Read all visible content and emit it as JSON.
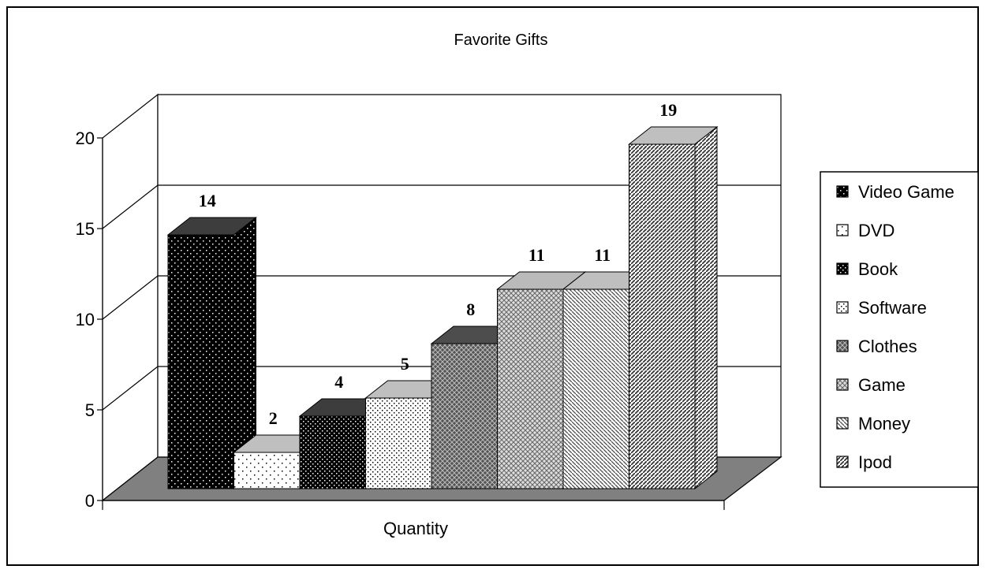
{
  "chart_data": {
    "type": "bar",
    "title": "Favorite Gifts",
    "xlabel": "Quantity",
    "ylabel": "",
    "ylim": [
      0,
      20
    ],
    "yticks": [
      "0",
      "5",
      "10",
      "15",
      "20"
    ],
    "grid": true,
    "three_d": true,
    "legend_position": "right",
    "series": [
      {
        "name": "Video Game",
        "value": 14,
        "label": "14",
        "face": "#000000",
        "dots": "#ffffff",
        "pattern": "dots-dark"
      },
      {
        "name": "DVD",
        "value": 2,
        "label": "2",
        "face": "#ffffff",
        "dots": "#000000",
        "pattern": "dots-light"
      },
      {
        "name": "Book",
        "value": 4,
        "label": "4",
        "face": "#000000",
        "dots": "#ffffff",
        "pattern": "checker-dark"
      },
      {
        "name": "Software",
        "value": 5,
        "label": "5",
        "face": "#ffffff",
        "dots": "#000000",
        "pattern": "dots-dense"
      },
      {
        "name": "Clothes",
        "value": 8,
        "label": "8",
        "face": "#555555",
        "dots": "#ffffff",
        "pattern": "crosshatch-dark"
      },
      {
        "name": "Game",
        "value": 11,
        "label": "11",
        "face": "#cfcfcf",
        "dots": "#000000",
        "pattern": "crosshatch-light"
      },
      {
        "name": "Money",
        "value": 11,
        "label": "11",
        "face": "#ffffff",
        "dots": "#000000",
        "pattern": "diag-light"
      },
      {
        "name": "Ipod",
        "value": 19,
        "label": "19",
        "face": "#ffffff",
        "dots": "#000000",
        "pattern": "diag-dark"
      }
    ],
    "floor_color": "#808080"
  }
}
